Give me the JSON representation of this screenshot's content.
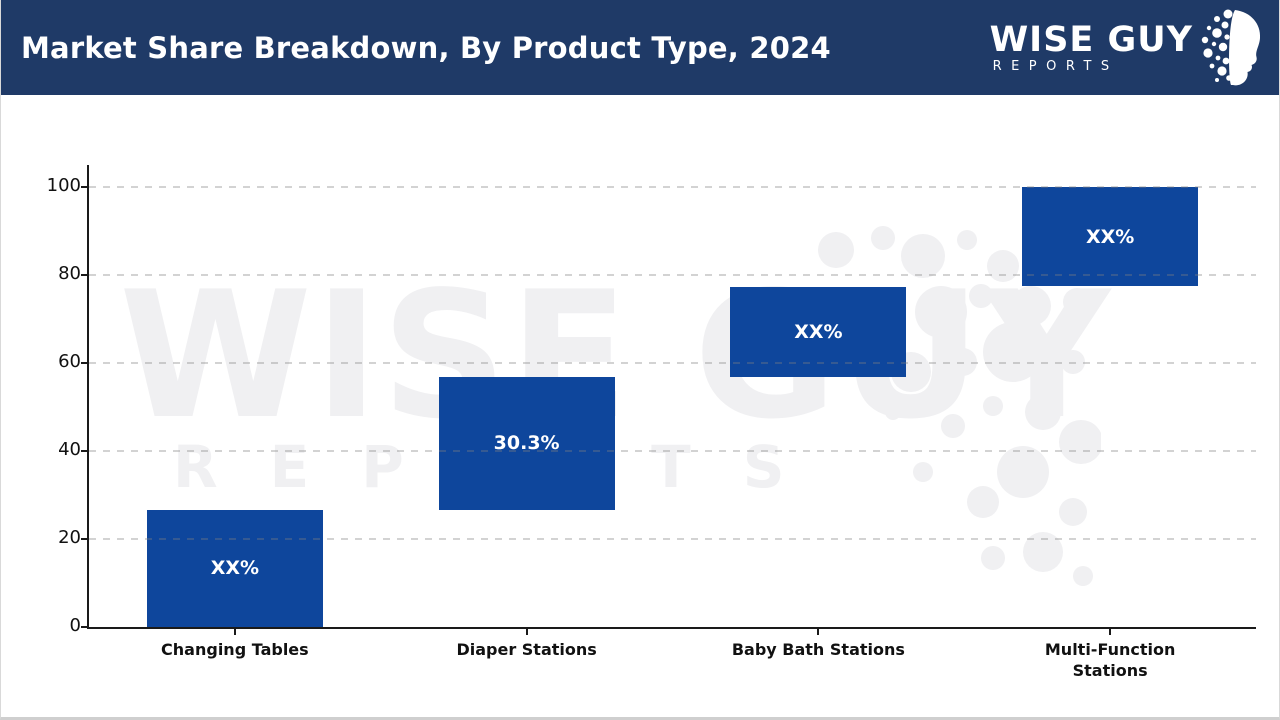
{
  "header": {
    "title": "Market Share Breakdown, By Product Type, 2024",
    "logo": {
      "line1": "WISE GUY",
      "line2": "REPORTS"
    }
  },
  "watermark": {
    "line1": "WISE GUY",
    "line2": "REPORTS"
  },
  "colors": {
    "header_bg": "#1f3a67",
    "bar": "#0e469c",
    "bar_label": "#ffffff",
    "axis": "#1a1a1a",
    "text": "#111111",
    "grid": "#d2d2d2",
    "watermark": "#f0f0f2"
  },
  "chart_data": {
    "type": "bar",
    "subtype": "floating-waterfall-segments",
    "title": "Market Share Breakdown, By Product Type, 2024",
    "xlabel": "",
    "ylabel": "",
    "categories": [
      "Changing Tables",
      "Diaper Stations",
      "Baby Bath Stations",
      "Multi-Function Stations"
    ],
    "bars": [
      {
        "start": 0,
        "end": 26.6,
        "label": "XX%"
      },
      {
        "start": 26.6,
        "end": 56.9,
        "label": "30.3%"
      },
      {
        "start": 56.9,
        "end": 77.3,
        "label": "XX%"
      },
      {
        "start": 77.5,
        "end": 100,
        "label": "XX%"
      }
    ],
    "ylim": [
      0,
      100
    ],
    "yticks": [
      0,
      20,
      40,
      60,
      80,
      100
    ],
    "grid": "horizontal-dashed",
    "legend": null
  }
}
